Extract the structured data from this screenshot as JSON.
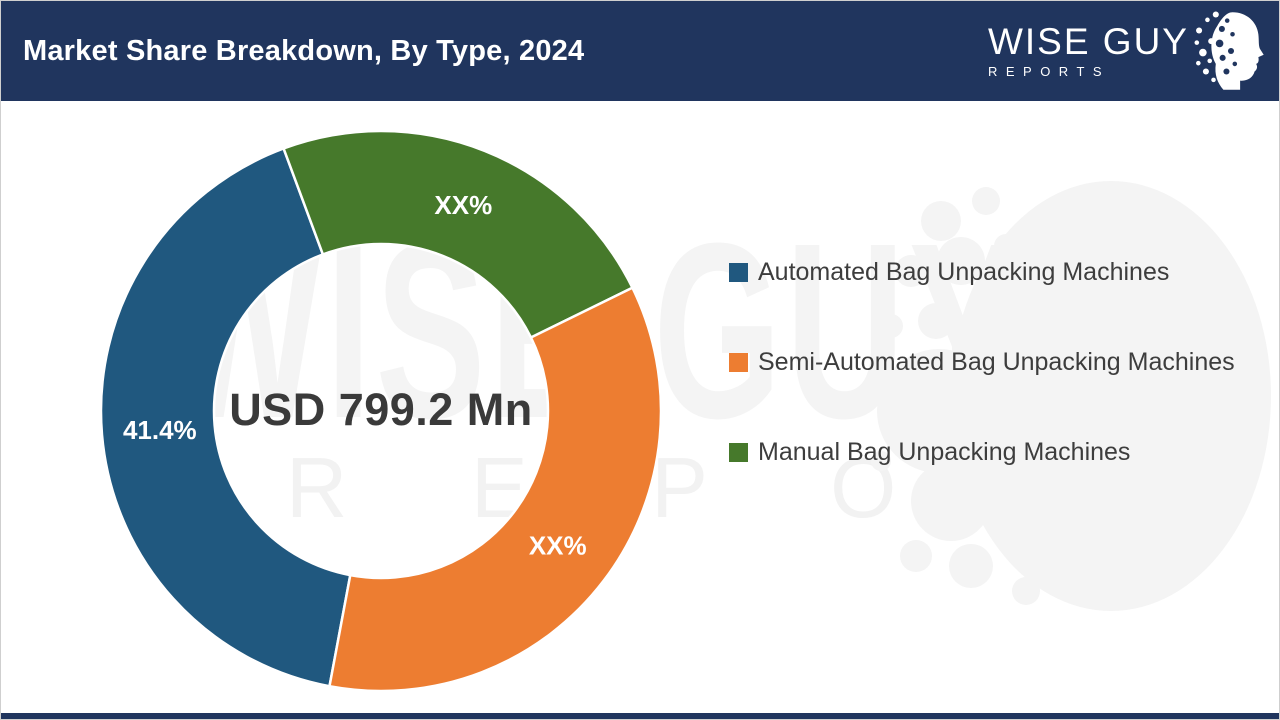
{
  "header": {
    "title": "Market Share Breakdown, By Type, 2024",
    "bg_color": "#20355E",
    "logo": {
      "line1": "WISE GUY",
      "line2": "REPORTS"
    }
  },
  "chart_data": {
    "type": "pie",
    "variant": "donut",
    "title": "Market Share Breakdown, By Type, 2024",
    "center_label": "USD 799.2 Mn",
    "categories": [
      "Automated Bag Unpacking Machines",
      "Semi-Automated Bag Unpacking Machines",
      "Manual Bag Unpacking Machines"
    ],
    "values_pct": [
      41.4,
      35.2,
      23.4
    ],
    "slice_labels": [
      "41.4%",
      "XX%",
      "XX%"
    ],
    "colors": [
      "#20587F",
      "#ED7D31",
      "#46792B"
    ],
    "layout": {
      "start_angle_deg": 190.6,
      "clockwise_order": [
        0,
        2,
        1
      ],
      "inner_radius_ratio": 0.596,
      "legend_position": "right",
      "label_color": "#FFFFFF",
      "gap_color": "#FFFFFF"
    }
  },
  "legend": {
    "items": [
      {
        "label": "Automated Bag Unpacking Machines",
        "color": "#20587F"
      },
      {
        "label": "Semi-Automated Bag Unpacking Machines",
        "color": "#ED7D31"
      },
      {
        "label": "Manual Bag Unpacking Machines",
        "color": "#46792B"
      }
    ]
  },
  "watermark": {
    "line1": "WISE GUY",
    "line2": "R E P O R T S"
  },
  "colors": {
    "header_navy": "#20355E",
    "text_dark": "#3A3A3A",
    "watermark_gray": "#F4F4F4",
    "border_gray": "#CFCFCF"
  }
}
